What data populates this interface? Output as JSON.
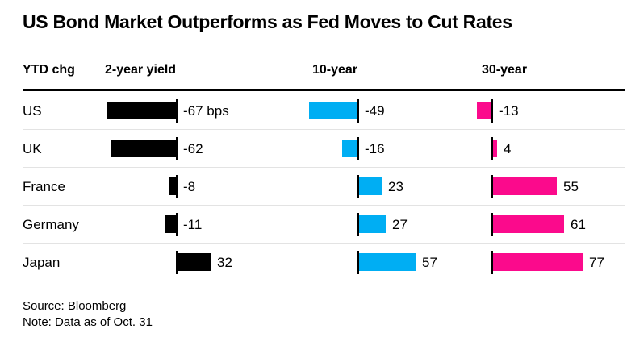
{
  "title": "US Bond Market Outperforms as Fed Moves to Cut Rates",
  "header": {
    "row_axis_label": "YTD chg",
    "columns": [
      "2-year yield",
      "10-year",
      "30-year"
    ]
  },
  "footer": {
    "source": "Source: Bloomberg",
    "note": "Note: Data as of Oct. 31"
  },
  "colors": {
    "background": "#ffffff",
    "text": "#000000",
    "series_2yr": "#000000",
    "series_10yr": "#00aef3",
    "series_30yr": "#fb0a8c",
    "top_rule": "#000000",
    "row_separator": "#e3e3e3"
  },
  "chart_data": {
    "type": "bar",
    "orientation": "horizontal",
    "title": "US Bond Market Outperforms as Fed Moves to Cut Rates",
    "value_unit": "bps",
    "value_axis_label": "YTD chg",
    "zero_baseline_per_column": true,
    "grid": false,
    "legend_position": "column-headers",
    "categories": [
      "US",
      "UK",
      "France",
      "Germany",
      "Japan"
    ],
    "series": [
      {
        "name": "2-year yield",
        "color": "#000000",
        "values": [
          -67,
          -62,
          -8,
          -11,
          32
        ],
        "labels": [
          "-67 bps",
          "-62",
          "-8",
          "-11",
          "32"
        ]
      },
      {
        "name": "10-year",
        "color": "#00aef3",
        "values": [
          -49,
          -16,
          23,
          27,
          57
        ],
        "labels": [
          "-49",
          "-16",
          "23",
          "27",
          "57"
        ]
      },
      {
        "name": "30-year",
        "color": "#fb0a8c",
        "values": [
          -13,
          4,
          55,
          61,
          77
        ],
        "labels": [
          "-13",
          "4",
          "55",
          "61",
          "77"
        ]
      }
    ]
  }
}
